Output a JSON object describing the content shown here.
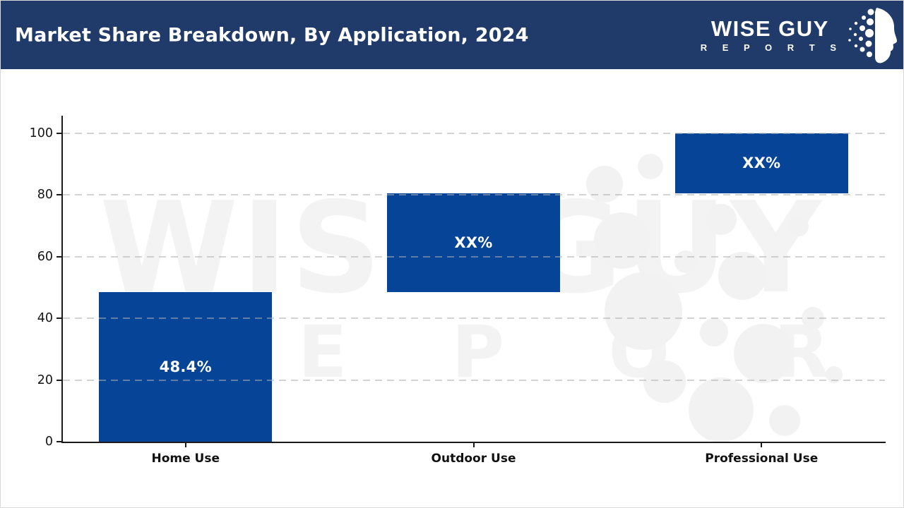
{
  "header": {
    "title": "Market Share Breakdown, By Application, 2024",
    "logo": {
      "wordmark": "WISE GUY",
      "reports": "R E P O R T S"
    }
  },
  "watermark": {
    "line1": "WISE GUY",
    "line2": "R E P O R T S"
  },
  "chart_data": {
    "type": "bar",
    "subtype": "waterfall",
    "title": "Market Share Breakdown, By Application, 2024",
    "categories": [
      "Home Use",
      "Outdoor Use",
      "Professional Use"
    ],
    "segments": [
      {
        "category": "Home Use",
        "start": 0,
        "end": 48.4,
        "label": "48.4%"
      },
      {
        "category": "Outdoor Use",
        "start": 48.4,
        "end": 80.5,
        "label": "XX%"
      },
      {
        "category": "Professional Use",
        "start": 80.5,
        "end": 100,
        "label": "XX%"
      }
    ],
    "xlabel": "",
    "ylabel": "",
    "ylim": [
      0,
      100
    ],
    "yticks": [
      0,
      20,
      40,
      60,
      80,
      100
    ],
    "grid": "dashed horizontal, drawn over bars",
    "legend": "none",
    "bar_color": "#054496",
    "bar_label_color": "#ffffff"
  },
  "colors": {
    "header_bg": "#203a69",
    "bar": "#054496",
    "axis": "#1a1a1a",
    "gridline": "#d7d7d9",
    "watermark": "#f3f3f3",
    "page_border": "#d9d9d9",
    "title_text": "#ffffff"
  }
}
